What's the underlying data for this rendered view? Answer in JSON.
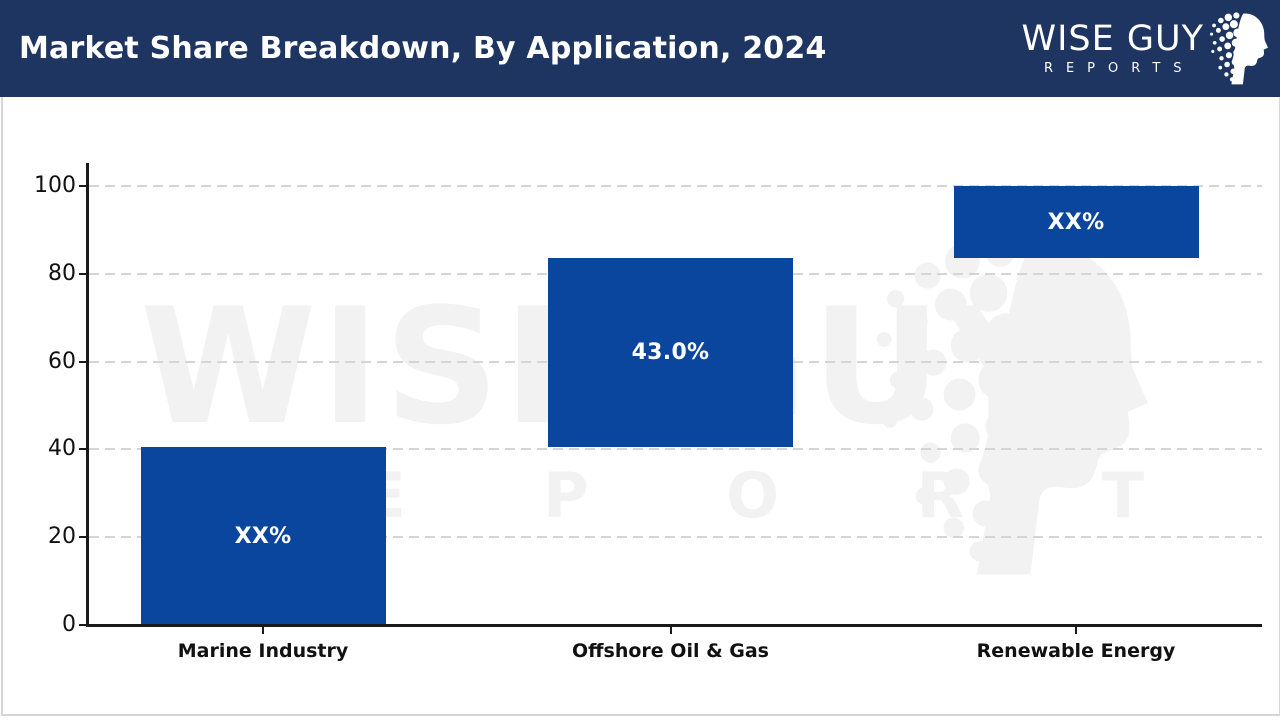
{
  "header": {
    "title": "Market Share Breakdown, By Application, 2024",
    "logo": {
      "line1": "WISE GUY",
      "line2": "REPORTS"
    }
  },
  "watermark": {
    "line1": "WISE GUY",
    "line2": "R E P O R T S"
  },
  "colors": {
    "header_bg": "#1e3461",
    "bar": "#0a469e",
    "bar_label": "#ffffff",
    "grid": "#d5d5d5",
    "axis": "#1a1a1a",
    "watermark": "#f2f2f2",
    "frame_border": "#d6d6d6"
  },
  "chart_data": {
    "type": "bar",
    "variant": "floating-waterfall-segments",
    "title": "Market Share Breakdown, By Application, 2024",
    "categories": [
      "Marine Industry",
      "Offshore Oil & Gas",
      "Renewable Energy"
    ],
    "segments": [
      {
        "category": "Marine Industry",
        "start": 0,
        "end": 40.5,
        "label": "XX%"
      },
      {
        "category": "Offshore Oil & Gas",
        "start": 40.5,
        "end": 83.5,
        "label": "43.0%"
      },
      {
        "category": "Renewable Energy",
        "start": 83.5,
        "end": 100,
        "label": "XX%"
      }
    ],
    "yticks": [
      0,
      20,
      40,
      60,
      80,
      100
    ],
    "ylim": [
      0,
      105
    ],
    "xlabel": "",
    "ylabel": "",
    "grid": "horizontal-dashed",
    "legend": "none"
  }
}
